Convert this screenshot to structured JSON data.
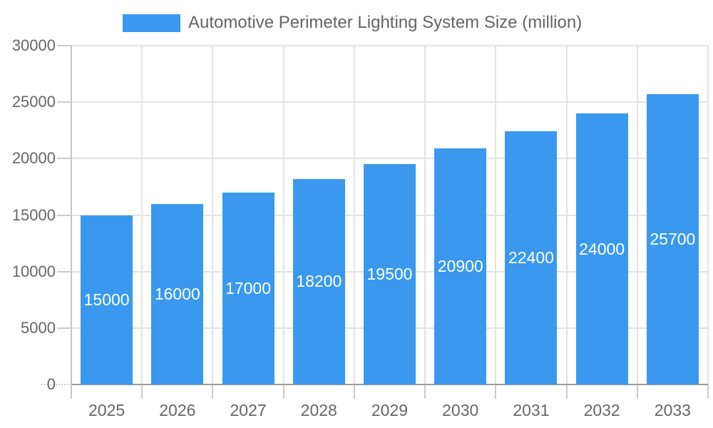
{
  "chart_data": {
    "type": "bar",
    "title": "Automotive Perimeter Lighting System Size (million)",
    "legend": {
      "label": "Automotive Perimeter Lighting System Size (million)",
      "position": "top"
    },
    "categories": [
      "2025",
      "2026",
      "2027",
      "2028",
      "2029",
      "2030",
      "2031",
      "2032",
      "2033"
    ],
    "series": [
      {
        "name": "Automotive Perimeter Lighting System Size (million)",
        "values": [
          15000,
          16000,
          17000,
          18200,
          19500,
          20900,
          22400,
          24000,
          25700
        ]
      }
    ],
    "xlabel": "",
    "ylabel": "",
    "ylim": [
      0,
      30000
    ],
    "ytick_interval": 5000,
    "yticks": [
      0,
      5000,
      10000,
      15000,
      20000,
      25000,
      30000
    ],
    "grid": true,
    "bar_labels_shown": true,
    "bar_label_position": "center-inside"
  },
  "colors": {
    "bar": "#3A99EE",
    "grid": "#E2E2E2",
    "axis_x": "#9B9B9B",
    "axis_y": "#C6C6C6",
    "tick": "#CCCCCC",
    "tick_text": "#666666",
    "legend_text": "#646464",
    "bar_label": "#FFFFFF",
    "background": "#FFFFFF"
  }
}
